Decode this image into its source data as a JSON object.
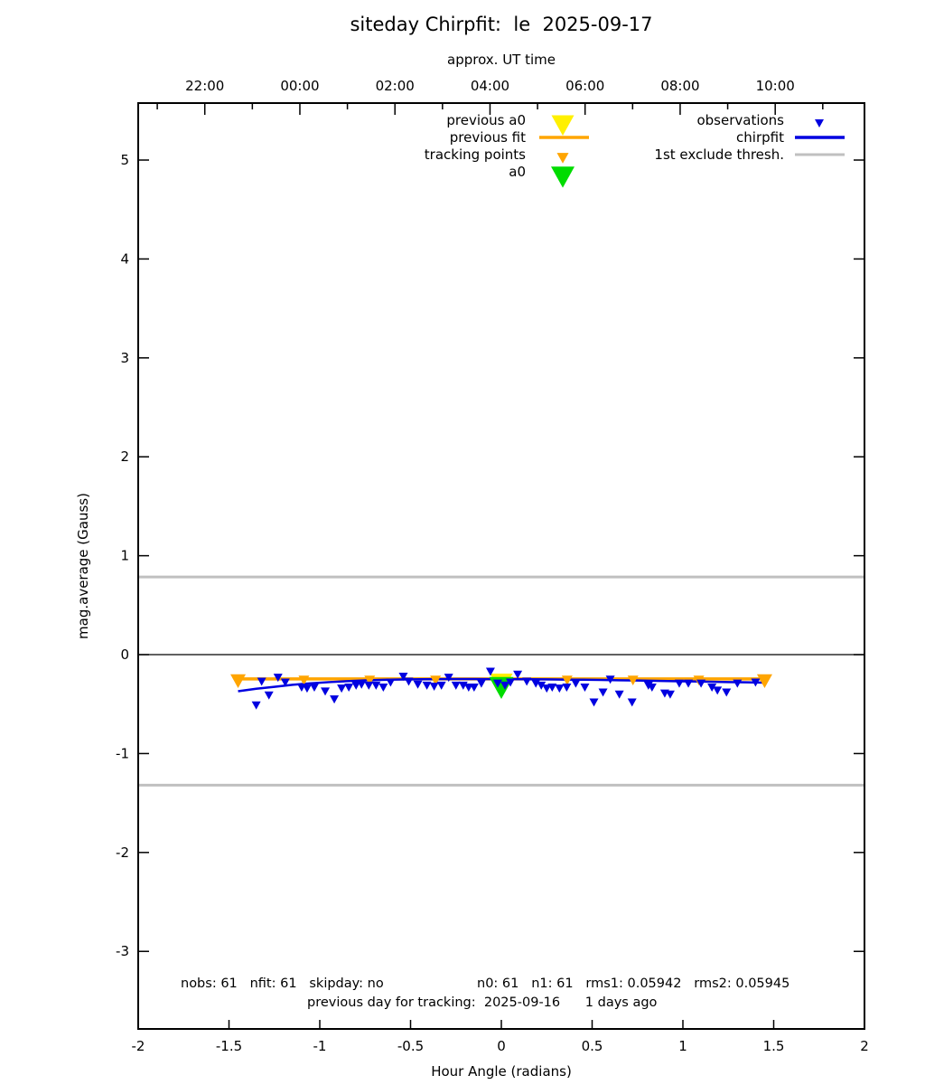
{
  "title": "siteday Chirpfit:  le  2025-09-17",
  "footer": {
    "line1_left": "nobs: 61   nfit: 61   skipday: no",
    "line1_right": "n0: 61   n1: 61   rms1: 0.05942   rms2: 0.05945",
    "line2": "previous day for tracking:  2025-09-16      1 days ago"
  },
  "colors": {
    "observations": "#0000e0",
    "chirpfit": "#0000e0",
    "previous_fit": "#ffa500",
    "tracking_points": "#ffa500",
    "previous_a0": "#fff000",
    "a0": "#00dc00",
    "exclude_threshold": "#c0c0c0",
    "axis": "#000000"
  },
  "legend": {
    "left_column": [
      {
        "label": "previous a0",
        "marker": "triangle",
        "color": "#fff000",
        "size": 25
      },
      {
        "label": "previous fit",
        "marker": "line",
        "color": "#ffa500",
        "width": 3.5
      },
      {
        "label": "tracking points",
        "marker": "triangle",
        "color": "#ffa500",
        "size": 13
      },
      {
        "label": "a0",
        "marker": "triangle",
        "color": "#00dc00",
        "size": 26
      }
    ],
    "right_column": [
      {
        "label": "observations",
        "marker": "triangle",
        "color": "#0000e0",
        "size": 10
      },
      {
        "label": "chirpfit",
        "marker": "line",
        "color": "#0000e0",
        "width": 3.5
      },
      {
        "label": "1st exclude thresh.",
        "marker": "line",
        "color": "#c0c0c0",
        "width": 3
      }
    ]
  },
  "chart_data": {
    "type": "scatter",
    "title": "siteday Chirpfit:  le  2025-09-17",
    "xlabel": "Hour Angle (radians)",
    "ylabel": "mag.average (Gauss)",
    "x2label": "approx. UT time",
    "xlim": [
      -2,
      2
    ],
    "ylim": [
      -3.784,
      5.576
    ],
    "grid": false,
    "x_ticks": [
      {
        "label": "-2",
        "x": -2.0
      },
      {
        "label": "-1.5",
        "x": -1.5
      },
      {
        "label": "-1",
        "x": -1.0
      },
      {
        "label": "-0.5",
        "x": -0.5
      },
      {
        "label": "0",
        "x": 0.0
      },
      {
        "label": "0.5",
        "x": 0.5
      },
      {
        "label": "1",
        "x": 1.0
      },
      {
        "label": "1.5",
        "x": 1.5
      },
      {
        "label": "2",
        "x": 2.0
      }
    ],
    "y_ticks": [
      {
        "label": "-3",
        "y": -3
      },
      {
        "label": "-2",
        "y": -2
      },
      {
        "label": "-1",
        "y": -1
      },
      {
        "label": "0",
        "y": 0
      },
      {
        "label": "1",
        "y": 1
      },
      {
        "label": "2",
        "y": 2
      },
      {
        "label": "3",
        "y": 3
      },
      {
        "label": "4",
        "y": 4
      },
      {
        "label": "5",
        "y": 5
      }
    ],
    "x2_ticks_major": [
      {
        "label": "22:00",
        "x": -1.6332
      },
      {
        "label": "00:00",
        "x": -1.1096
      },
      {
        "label": "02:00",
        "x": -0.586
      },
      {
        "label": "04:00",
        "x": -0.0624
      },
      {
        "label": "06:00",
        "x": 0.4612
      },
      {
        "label": "08:00",
        "x": 0.9848
      },
      {
        "label": "10:00",
        "x": 1.5084
      }
    ],
    "x2_ticks_minor": [
      -1.895,
      -1.3714,
      -0.8478,
      -0.3242,
      0.1994,
      0.723,
      1.2466,
      1.7702
    ],
    "zero_line_y": 0,
    "exclude_thresholds": [
      0.785,
      -1.32
    ],
    "series": [
      {
        "name": "observations",
        "type": "scatter",
        "marker": "triangle-down",
        "color": "#0000e0",
        "marker_size": 10,
        "points": [
          [
            -1.35,
            -0.5
          ],
          [
            -1.32,
            -0.26
          ],
          [
            -1.28,
            -0.4
          ],
          [
            -1.23,
            -0.22
          ],
          [
            -1.19,
            -0.27
          ],
          [
            -1.1,
            -0.32
          ],
          [
            -1.07,
            -0.33
          ],
          [
            -1.03,
            -0.32
          ],
          [
            -0.97,
            -0.36
          ],
          [
            -0.92,
            -0.44
          ],
          [
            -0.88,
            -0.33
          ],
          [
            -0.84,
            -0.32
          ],
          [
            -0.8,
            -0.3
          ],
          [
            -0.77,
            -0.29
          ],
          [
            -0.73,
            -0.3
          ],
          [
            -0.69,
            -0.3
          ],
          [
            -0.65,
            -0.32
          ],
          [
            -0.61,
            -0.27
          ],
          [
            -0.54,
            -0.21
          ],
          [
            -0.51,
            -0.26
          ],
          [
            -0.46,
            -0.29
          ],
          [
            -0.41,
            -0.3
          ],
          [
            -0.37,
            -0.31
          ],
          [
            -0.33,
            -0.3
          ],
          [
            -0.29,
            -0.22
          ],
          [
            -0.25,
            -0.3
          ],
          [
            -0.21,
            -0.3
          ],
          [
            -0.18,
            -0.32
          ],
          [
            -0.15,
            -0.32
          ],
          [
            -0.11,
            -0.28
          ],
          [
            -0.06,
            -0.16
          ],
          [
            -0.02,
            -0.28
          ],
          [
            0.02,
            -0.3
          ],
          [
            0.05,
            -0.27
          ],
          [
            0.09,
            -0.19
          ],
          [
            0.14,
            -0.26
          ],
          [
            0.19,
            -0.28
          ],
          [
            0.22,
            -0.3
          ],
          [
            0.25,
            -0.33
          ],
          [
            0.28,
            -0.32
          ],
          [
            0.32,
            -0.33
          ],
          [
            0.36,
            -0.32
          ],
          [
            0.41,
            -0.28
          ],
          [
            0.46,
            -0.32
          ],
          [
            0.51,
            -0.47
          ],
          [
            0.56,
            -0.37
          ],
          [
            0.6,
            -0.24
          ],
          [
            0.65,
            -0.39
          ],
          [
            0.72,
            -0.47
          ],
          [
            0.81,
            -0.3
          ],
          [
            0.83,
            -0.32
          ],
          [
            0.9,
            -0.38
          ],
          [
            0.93,
            -0.39
          ],
          [
            0.98,
            -0.28
          ],
          [
            1.03,
            -0.28
          ],
          [
            1.1,
            -0.28
          ],
          [
            1.16,
            -0.32
          ],
          [
            1.19,
            -0.35
          ],
          [
            1.24,
            -0.37
          ],
          [
            1.3,
            -0.28
          ],
          [
            1.4,
            -0.27
          ]
        ]
      },
      {
        "name": "chirpfit",
        "type": "line",
        "color": "#0000e0",
        "width": 2.5,
        "points": [
          [
            -1.45,
            -0.37
          ],
          [
            -1.35,
            -0.345
          ],
          [
            -1.25,
            -0.325
          ],
          [
            -1.15,
            -0.305
          ],
          [
            -1.05,
            -0.29
          ],
          [
            -0.95,
            -0.278
          ],
          [
            -0.85,
            -0.268
          ],
          [
            -0.75,
            -0.26
          ],
          [
            -0.65,
            -0.255
          ],
          [
            -0.55,
            -0.251
          ],
          [
            -0.45,
            -0.249
          ],
          [
            -0.35,
            -0.248
          ],
          [
            -0.25,
            -0.247
          ],
          [
            -0.15,
            -0.247
          ],
          [
            -0.05,
            -0.248
          ],
          [
            0.05,
            -0.248
          ],
          [
            0.15,
            -0.249
          ],
          [
            0.25,
            -0.25
          ],
          [
            0.35,
            -0.252
          ],
          [
            0.45,
            -0.254
          ],
          [
            0.55,
            -0.256
          ],
          [
            0.65,
            -0.259
          ],
          [
            0.75,
            -0.262
          ],
          [
            0.85,
            -0.265
          ],
          [
            0.95,
            -0.268
          ],
          [
            1.05,
            -0.271
          ],
          [
            1.15,
            -0.274
          ],
          [
            1.25,
            -0.277
          ],
          [
            1.35,
            -0.28
          ],
          [
            1.45,
            -0.283
          ]
        ]
      },
      {
        "name": "previous fit",
        "type": "line",
        "color": "#ffa500",
        "width": 3.5,
        "points": [
          [
            -1.45,
            -0.245
          ],
          [
            1.45,
            -0.245
          ]
        ]
      },
      {
        "name": "tracking points",
        "type": "scatter",
        "marker": "triangle-down",
        "color": "#ffa500",
        "marker_size": 12,
        "end_marker_size": 17,
        "points": [
          [
            -1.45,
            -0.245
          ],
          [
            -1.0875,
            -0.245
          ],
          [
            -0.725,
            -0.245
          ],
          [
            -0.3625,
            -0.245
          ],
          [
            0.0,
            -0.245
          ],
          [
            0.3625,
            -0.245
          ],
          [
            0.725,
            -0.245
          ],
          [
            1.0875,
            -0.245
          ],
          [
            1.45,
            -0.245
          ]
        ]
      },
      {
        "name": "previous a0",
        "type": "scatter",
        "marker": "triangle-down",
        "color": "#fff000",
        "marker_size": 25,
        "points": [
          [
            0.0,
            -0.26
          ]
        ]
      },
      {
        "name": "a0",
        "type": "scatter",
        "marker": "triangle-down",
        "color": "#00dc00",
        "marker_size": 27,
        "points": [
          [
            0.0,
            -0.3
          ]
        ]
      },
      {
        "name": "1st exclude thresh.",
        "type": "hline",
        "color": "#c0c0c0",
        "width": 3,
        "values": [
          0.785,
          -1.32
        ]
      }
    ]
  }
}
